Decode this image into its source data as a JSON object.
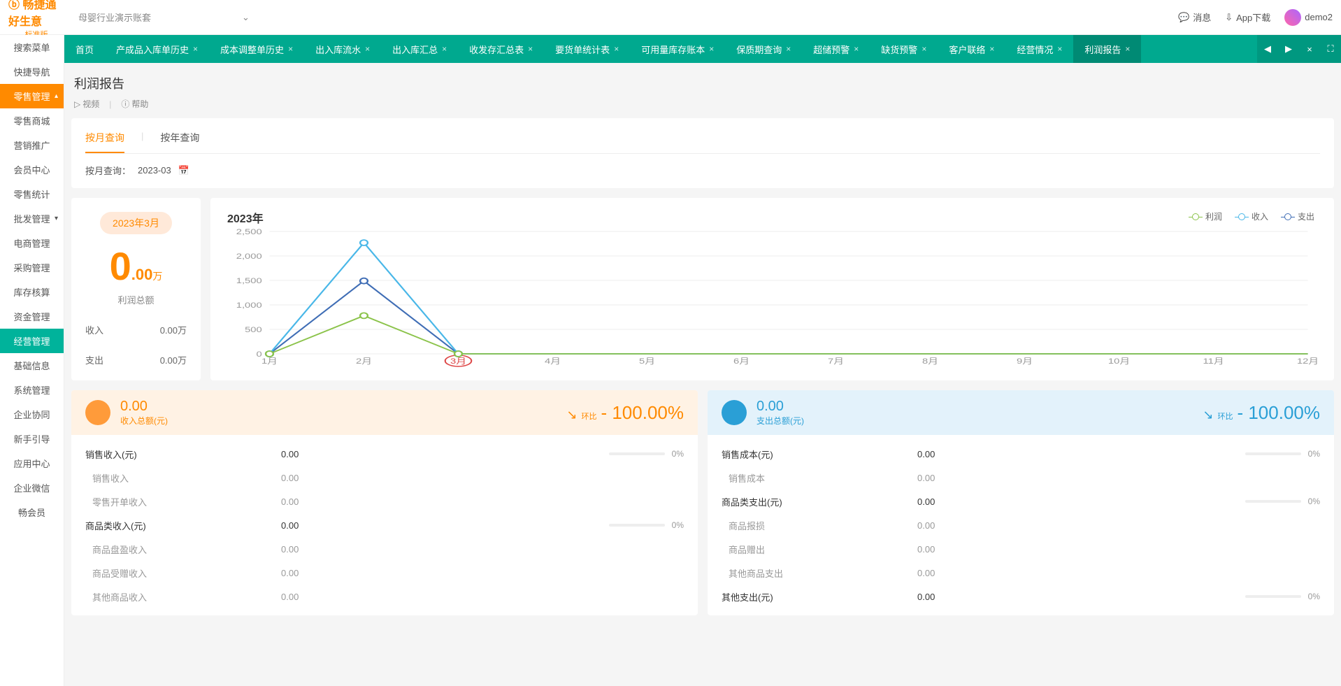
{
  "header": {
    "logo_main": "畅捷通好生意",
    "logo_sub": "标准版",
    "account_selector": "母婴行业演示账套",
    "message": "消息",
    "app_download": "App下载",
    "username": "demo2"
  },
  "sidebar": {
    "items": [
      {
        "label": "搜索菜单"
      },
      {
        "label": "快捷导航"
      },
      {
        "label": "零售管理",
        "active": "orange",
        "arrow": "▴"
      },
      {
        "label": "零售商城"
      },
      {
        "label": "营销推广"
      },
      {
        "label": "会员中心"
      },
      {
        "label": "零售统计"
      },
      {
        "label": "批发管理",
        "arrow": "▾"
      },
      {
        "label": "电商管理"
      },
      {
        "label": "采购管理"
      },
      {
        "label": "库存核算"
      },
      {
        "label": "资金管理"
      },
      {
        "label": "经营管理",
        "active": "teal"
      },
      {
        "label": "基础信息"
      },
      {
        "label": "系统管理"
      },
      {
        "label": "企业协同"
      },
      {
        "label": "新手引导"
      },
      {
        "label": "应用中心"
      },
      {
        "label": "企业微信"
      },
      {
        "label": "畅会员"
      }
    ]
  },
  "tabs": [
    {
      "label": "首页",
      "closable": false
    },
    {
      "label": "产成品入库单历史",
      "closable": true
    },
    {
      "label": "成本调整单历史",
      "closable": true
    },
    {
      "label": "出入库流水",
      "closable": true
    },
    {
      "label": "出入库汇总",
      "closable": true
    },
    {
      "label": "收发存汇总表",
      "closable": true
    },
    {
      "label": "要货单统计表",
      "closable": true
    },
    {
      "label": "可用量库存账本",
      "closable": true
    },
    {
      "label": "保质期查询",
      "closable": true
    },
    {
      "label": "超储预警",
      "closable": true
    },
    {
      "label": "缺货预警",
      "closable": true
    },
    {
      "label": "客户联络",
      "closable": true
    },
    {
      "label": "经营情况",
      "closable": true
    },
    {
      "label": "利润报告",
      "closable": true,
      "active": true
    }
  ],
  "page": {
    "title": "利润报告",
    "video_link": "视频",
    "help_link": "帮助",
    "query_tab_month": "按月查询",
    "query_tab_year": "按年查询",
    "query_label": "按月查询：",
    "query_value": "2023-03"
  },
  "summary": {
    "pill": "2023年3月",
    "big_int": "0",
    "big_dec": ".00",
    "big_unit": "万",
    "profit_total_label": "利润总额",
    "income_label": "收入",
    "income_value": "0.00万",
    "expense_label": "支出",
    "expense_value": "0.00万"
  },
  "chart": {
    "title": "2023年",
    "legend": [
      {
        "label": "利润",
        "color": "#8bc34a"
      },
      {
        "label": "收入",
        "color": "#49b7e8"
      },
      {
        "label": "支出",
        "color": "#3f6db5"
      }
    ],
    "y_ticks": [
      "2,500",
      "2,000",
      "1,500",
      "1,000",
      "500",
      "0"
    ],
    "x_ticks": [
      "1月",
      "2月",
      "3月",
      "4月",
      "5月",
      "6月",
      "7月",
      "8月",
      "9月",
      "10月",
      "11月",
      "12月"
    ],
    "highlight_x": "3月",
    "y_max": 2500,
    "series": {
      "profit": [
        0,
        780,
        0,
        0,
        0,
        0,
        0,
        0,
        0,
        0,
        0,
        0
      ],
      "income": [
        0,
        2270,
        0,
        0,
        0,
        0,
        0,
        0,
        0,
        0,
        0,
        0
      ],
      "expense": [
        0,
        1490,
        0,
        0,
        0,
        0,
        0,
        0,
        0,
        0,
        0,
        0
      ]
    },
    "marker_months": [
      0,
      1,
      2
    ],
    "colors": {
      "profit": "#8bc34a",
      "income": "#49b7e8",
      "expense": "#3f6db5"
    }
  },
  "income_panel": {
    "value": "0.00",
    "label": "收入总额(元)",
    "huanbi": "环比",
    "pct": "- 100.00%",
    "rows": [
      {
        "label": "销售收入(元)",
        "value": "0.00",
        "bar": "0%",
        "sub": false
      },
      {
        "label": "销售收入",
        "value": "0.00",
        "sub": true
      },
      {
        "label": "零售开单收入",
        "value": "0.00",
        "sub": true
      },
      {
        "label": "商品类收入(元)",
        "value": "0.00",
        "bar": "0%",
        "sub": false
      },
      {
        "label": "商品盘盈收入",
        "value": "0.00",
        "sub": true
      },
      {
        "label": "商品受赠收入",
        "value": "0.00",
        "sub": true
      },
      {
        "label": "其他商品收入",
        "value": "0.00",
        "sub": true
      }
    ]
  },
  "expense_panel": {
    "value": "0.00",
    "label": "支出总额(元)",
    "huanbi": "环比",
    "pct": "- 100.00%",
    "rows": [
      {
        "label": "销售成本(元)",
        "value": "0.00",
        "bar": "0%",
        "sub": false
      },
      {
        "label": "销售成本",
        "value": "0.00",
        "sub": true
      },
      {
        "label": "商品类支出(元)",
        "value": "0.00",
        "bar": "0%",
        "sub": false
      },
      {
        "label": "商品报损",
        "value": "0.00",
        "sub": true
      },
      {
        "label": "商品赠出",
        "value": "0.00",
        "sub": true
      },
      {
        "label": "其他商品支出",
        "value": "0.00",
        "sub": true
      },
      {
        "label": "其他支出(元)",
        "value": "0.00",
        "bar": "0%",
        "sub": false
      }
    ]
  }
}
